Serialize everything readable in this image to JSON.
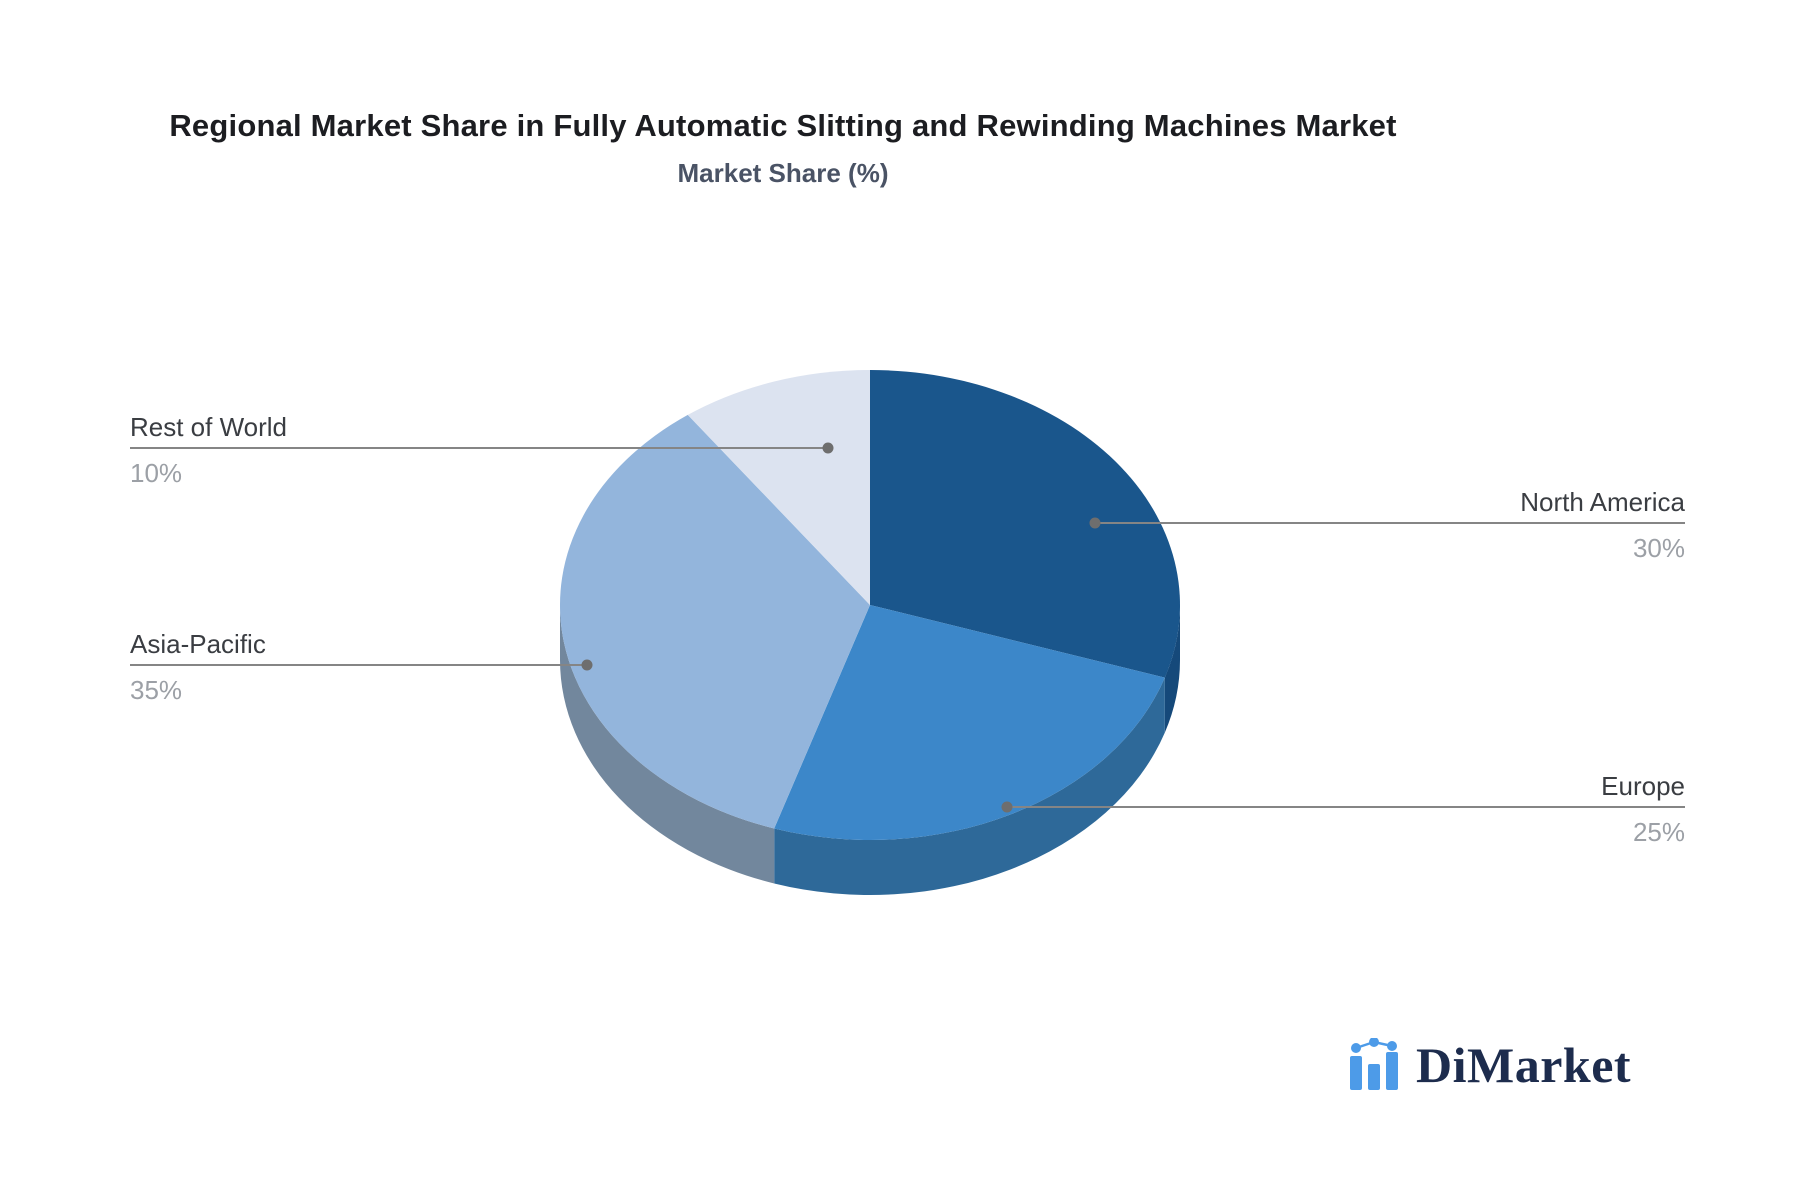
{
  "title": "Regional Market Share in Fully Automatic Slitting and Rewinding Machines Market",
  "subtitle": "Market Share (%)",
  "chart_data": {
    "type": "pie",
    "title": "Regional Market Share in Fully Automatic Slitting and Rewinding Machines Market",
    "subtitle": "Market Share (%)",
    "effect_3d": true,
    "start_angle_deg": 0,
    "direction": "clockwise",
    "slices": [
      {
        "label": "North America",
        "value": 30,
        "display_value": "30%",
        "color": "#1A568C",
        "side_color": "#15497A",
        "label_side": "right"
      },
      {
        "label": "Europe",
        "value": 25,
        "display_value": "25%",
        "color": "#3C87C9",
        "side_color": "#2E6999",
        "label_side": "right"
      },
      {
        "label": "Asia-Pacific",
        "value": 35,
        "display_value": "35%",
        "color": "#93B5DC",
        "side_color": "#72879D",
        "label_side": "left"
      },
      {
        "label": "Rest of World",
        "value": 10,
        "display_value": "10%",
        "color": "#DCE3F0",
        "side_color": "#BCC6D6",
        "label_side": "left"
      }
    ],
    "leader_line_color": "#858585",
    "label_color": "#3a3d42",
    "percent_color": "#9ca0a6"
  },
  "branding": {
    "name": "DiMarket",
    "icon": "bar-line-chart-icon",
    "icon_color": "#4D9BE8",
    "text_color": "#1d2c4d"
  }
}
